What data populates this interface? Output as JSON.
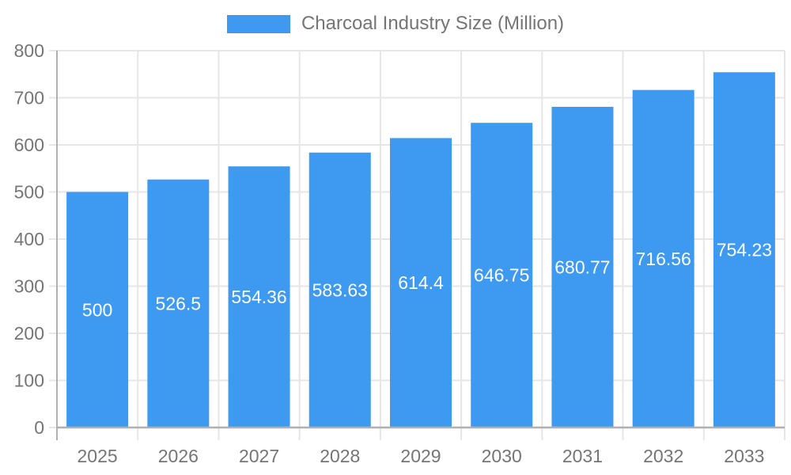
{
  "legend": {
    "position": "top",
    "label": "Charcoal Industry Size (Million)"
  },
  "colors": {
    "bar": "#3D9AF0",
    "grid": "#E6E6E6",
    "axis": "#B0B0B0",
    "text": "#757575",
    "bar_label": "#FFFFFF",
    "background": "#FFFFFF"
  },
  "chart_data": {
    "type": "bar",
    "title": "Charcoal Industry Size (Million)",
    "categories": [
      "2025",
      "2026",
      "2027",
      "2028",
      "2029",
      "2030",
      "2031",
      "2032",
      "2033"
    ],
    "values": [
      500,
      526.5,
      554.36,
      583.63,
      614.4,
      646.75,
      680.77,
      716.56,
      754.23
    ],
    "value_labels": [
      "500",
      "526.5",
      "554.36",
      "583.63",
      "614.4",
      "646.75",
      "680.77",
      "716.56",
      "754.23"
    ],
    "xlabel": "",
    "ylabel": "",
    "ylim": [
      0,
      800
    ],
    "ytick_interval": 100,
    "yticks": [
      0,
      100,
      200,
      300,
      400,
      500,
      600,
      700,
      800
    ],
    "grid": true,
    "legend_position": "top"
  }
}
